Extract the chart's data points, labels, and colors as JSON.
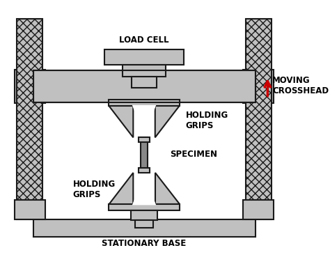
{
  "background_color": "#ffffff",
  "gray_fill": "#c0c0c0",
  "dark_outline": "#1a1a1a",
  "red_arrow": "#cc0000",
  "text_color": "#000000",
  "title_label": "LOAD CELL",
  "stationary_base_label": "STATIONARY BASE",
  "moving_crosshead_label": "MOVING\nCROSSHEAD",
  "holding_grips_label_top": "HOLDING\nGRIPS",
  "holding_grips_label_bot": "HOLDING\nGRIPS",
  "specimen_label": "SPECIMEN",
  "lw": 1.5,
  "hatch_lw": 0.5
}
